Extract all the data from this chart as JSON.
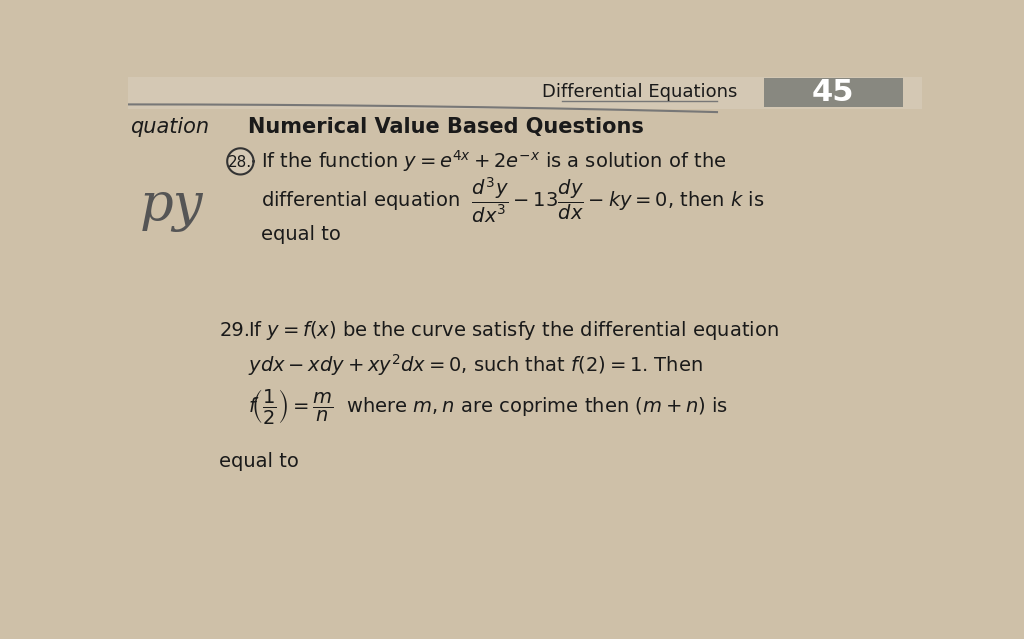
{
  "bg_color": "#cec0a8",
  "header_bg": "#d4c8b4",
  "page_num_bg": "#888880",
  "header_text": "Differential Equations",
  "page_number": "45",
  "left_margin_text": "quation",
  "section_title": "Numerical Value Based Questions",
  "text_color": "#1a1a1a",
  "header_line_color": "#777777",
  "page_num_color": "#ffffff",
  "circle_edge": "#333333",
  "scribble_color": "#555555"
}
